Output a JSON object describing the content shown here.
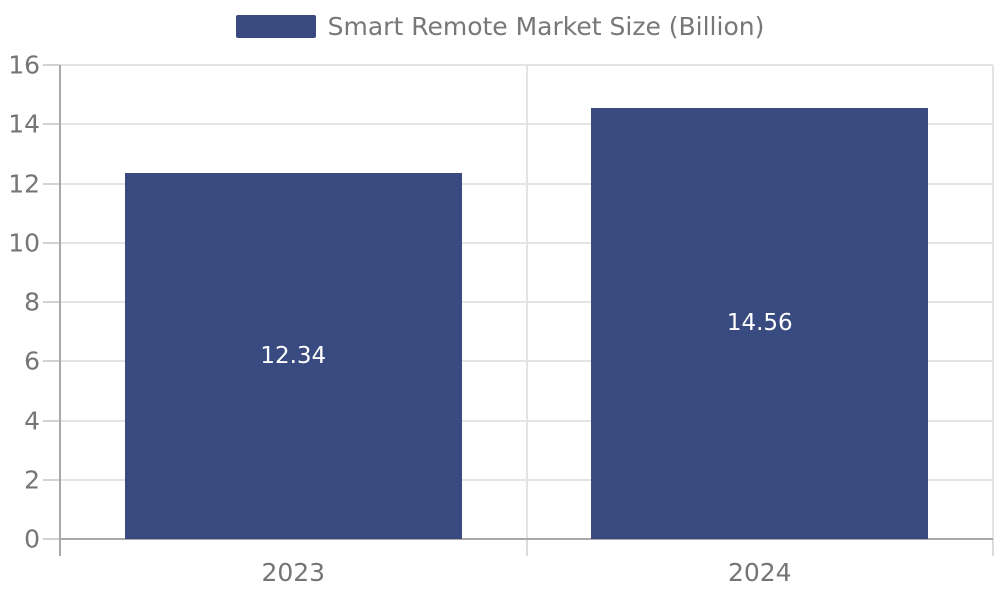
{
  "legend": {
    "label": "Smart Remote Market Size (Billion)",
    "swatch_color": "#394A80"
  },
  "chart_data": {
    "type": "bar",
    "title": "",
    "categories": [
      "2023",
      "2024"
    ],
    "series": [
      {
        "name": "Smart Remote Market Size (Billion)",
        "values": [
          12.34,
          14.56
        ]
      }
    ],
    "value_labels": [
      "12.34",
      "14.56"
    ],
    "xlabel": "",
    "ylabel": "",
    "ylim": [
      0,
      16
    ],
    "yticks": [
      0,
      2,
      4,
      6,
      8,
      10,
      12,
      14,
      16
    ],
    "grid": true,
    "legend_position": "top-center",
    "bar_color": "#394A80",
    "value_label_color": "#FFFFFF",
    "axis_text_color": "#757575",
    "gridline_color": "#E4E4E4",
    "axis_line_color": "#A9A9A9",
    "background_color": "#FFFFFF"
  }
}
